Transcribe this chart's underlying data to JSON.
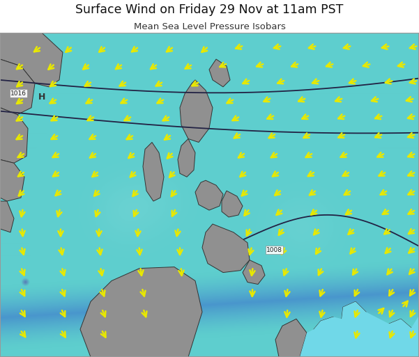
{
  "title": "Surface Wind on Friday 29 Nov at 11am PST",
  "subtitle": "Mean Sea Level Pressure Isobars",
  "title_fontsize": 12.5,
  "subtitle_fontsize": 9.5,
  "fig_width": 6.01,
  "fig_height": 5.13,
  "dpi": 100,
  "header_bg": "#ffffff",
  "arrow_color": "#e8e800",
  "arrow_edge_color": "#b0b000",
  "isobar_color": "#222244",
  "title_color": "#111111",
  "subtitle_color": "#333333",
  "ocean_base": "#5ecece",
  "ocean_light": "#c0f0f0",
  "ocean_white": "#e8fafa",
  "ocean_dark": "#3090b8",
  "ocean_blue": "#4478b8",
  "land_color": "#909090",
  "land_edge": "#333333"
}
